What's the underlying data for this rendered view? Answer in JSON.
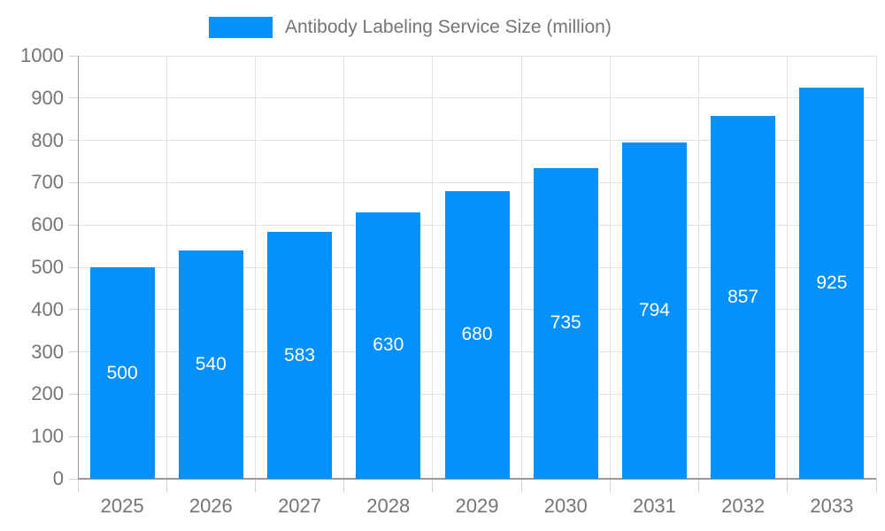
{
  "legend": {
    "label": "Antibody Labeling Service Size (million)"
  },
  "chart_data": {
    "type": "bar",
    "title": "Antibody Labeling Service Size (million)",
    "categories": [
      "2025",
      "2026",
      "2027",
      "2028",
      "2029",
      "2030",
      "2031",
      "2032",
      "2033"
    ],
    "values": [
      500,
      540,
      583,
      630,
      680,
      735,
      794,
      857,
      925
    ],
    "value_labels": [
      "500",
      "540",
      "583",
      "630",
      "680",
      "735",
      "794",
      "857",
      "925"
    ],
    "xlabel": "",
    "ylabel": "",
    "ylim": [
      0,
      1000
    ],
    "ytick_step": 100,
    "yticks": [
      0,
      100,
      200,
      300,
      400,
      500,
      600,
      700,
      800,
      900,
      1000
    ],
    "grid": true,
    "legend_position": "top",
    "colors": {
      "bar": "#0690fa",
      "bar_label": "#ffffff",
      "axis_text": "#757575",
      "grid_line": "#e2e2e2",
      "tick_line": "#d2d2d2",
      "axis_line": "#999999",
      "background": "#ffffff"
    }
  }
}
